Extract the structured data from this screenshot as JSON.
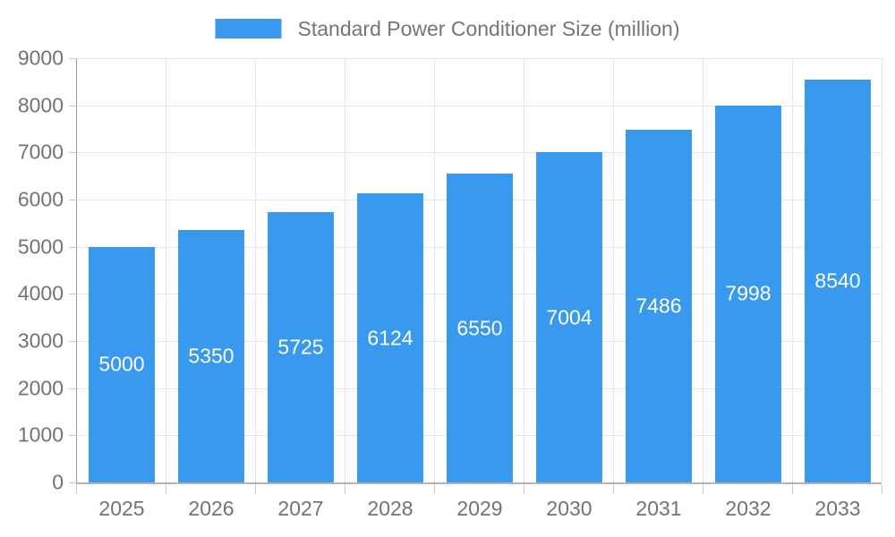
{
  "chart_data": {
    "type": "bar",
    "title": "",
    "legend_entries": [
      "Standard Power Conditioner Size (million)"
    ],
    "legend_position": "top",
    "categories": [
      "2025",
      "2026",
      "2027",
      "2028",
      "2029",
      "2030",
      "2031",
      "2032",
      "2033"
    ],
    "series": [
      {
        "name": "Standard Power Conditioner Size (million)",
        "values": [
          5000,
          5350,
          5725,
          6124,
          6550,
          7004,
          7486,
          7998,
          8540
        ]
      }
    ],
    "data_labels_shown": true,
    "xlabel": "",
    "ylabel": "",
    "ylim": [
      0,
      9000
    ],
    "ytick_step": 1000,
    "yticks": [
      "0",
      "1000",
      "2000",
      "3000",
      "4000",
      "5000",
      "6000",
      "7000",
      "8000",
      "9000"
    ],
    "grid": true,
    "colors": {
      "bar": "#3899ee",
      "bar_label_text": "#ffffff",
      "axis_text": "#737373",
      "legend_text": "#757575",
      "gridline": "#e6e6e6",
      "axis_line": "#9e9e9e",
      "background": "#ffffff"
    }
  }
}
